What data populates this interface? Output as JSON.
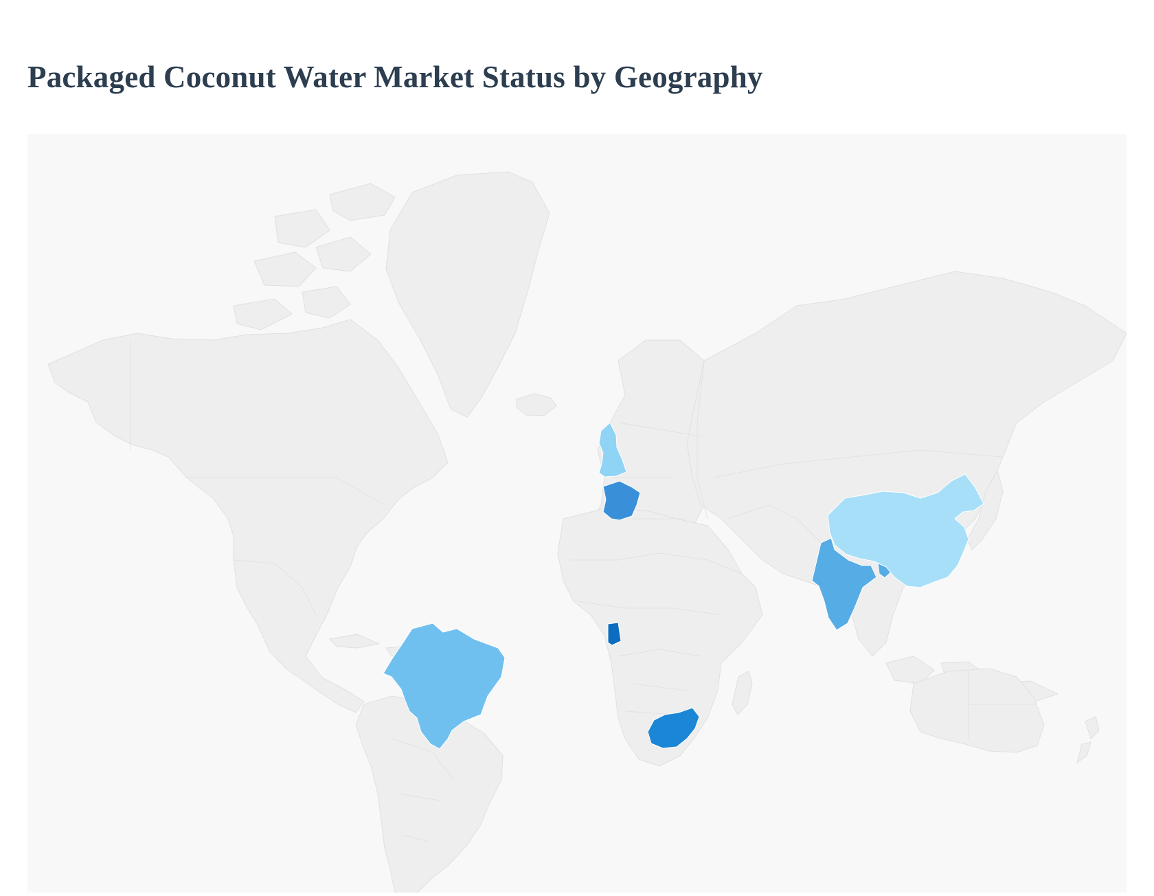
{
  "page": {
    "title": "Packaged Coconut Water Market Status by Geography"
  },
  "map": {
    "projection": "mercator-world",
    "background_color": "#f8f8f8",
    "default_land_color": "#eeeeee",
    "border_color": "#e0e0e0",
    "highlighted_regions": [
      {
        "country": "United Kingdom",
        "color": "#8fd3f5"
      },
      {
        "country": "France",
        "color": "#3a90d8"
      },
      {
        "country": "Ghana",
        "color": "#0b6cc0"
      },
      {
        "country": "Brazil",
        "color": "#6fc0ee"
      },
      {
        "country": "South Africa",
        "color": "#1c86d6"
      },
      {
        "country": "India",
        "color": "#56ace4"
      },
      {
        "country": "China",
        "color": "#a8dff8"
      }
    ]
  }
}
